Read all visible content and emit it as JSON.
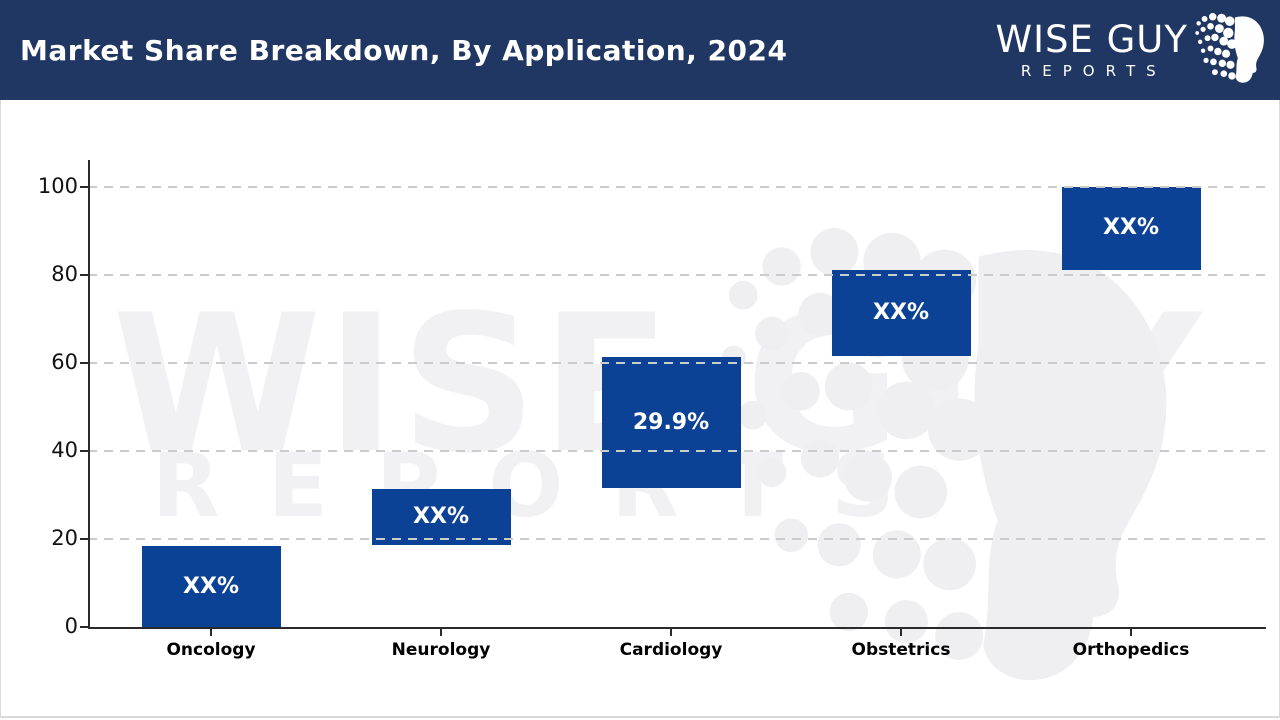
{
  "header": {
    "title": "Market Share Breakdown, By Application, 2024",
    "logo": {
      "wordmark": "WISE GUY",
      "subtext": "REPORTS"
    },
    "bg_color": "#213763"
  },
  "watermark": {
    "wordmark": "WISE GUY",
    "subtext": "REPORTS"
  },
  "chart_data": {
    "type": "bar",
    "subtype": "waterfall",
    "title": "Market Share Breakdown, By Application, 2024",
    "categories": [
      "Oncology",
      "Neurology",
      "Cardiology",
      "Obstetrics",
      "Orthopedics"
    ],
    "segments": [
      {
        "category": "Oncology",
        "start": 0,
        "end": 18.5,
        "label": "XX%"
      },
      {
        "category": "Neurology",
        "start": 18.6,
        "end": 31.4,
        "label": "XX%"
      },
      {
        "category": "Cardiology",
        "start": 31.5,
        "end": 61.4,
        "label": "29.9%"
      },
      {
        "category": "Obstetrics",
        "start": 61.5,
        "end": 81.2,
        "label": "XX%"
      },
      {
        "category": "Orthopedics",
        "start": 81.2,
        "end": 100,
        "label": "XX%"
      }
    ],
    "ylim": [
      0,
      100
    ],
    "yticks": [
      0,
      20,
      40,
      60,
      80,
      100
    ],
    "grid": {
      "horizontal": true,
      "style": "dashed",
      "color": "#cbcbcb",
      "drawn_over_bars": true
    },
    "bar_color": "#0c4296",
    "bar_label_color": "#ffffff",
    "axis_color": "#2a2a2a"
  }
}
